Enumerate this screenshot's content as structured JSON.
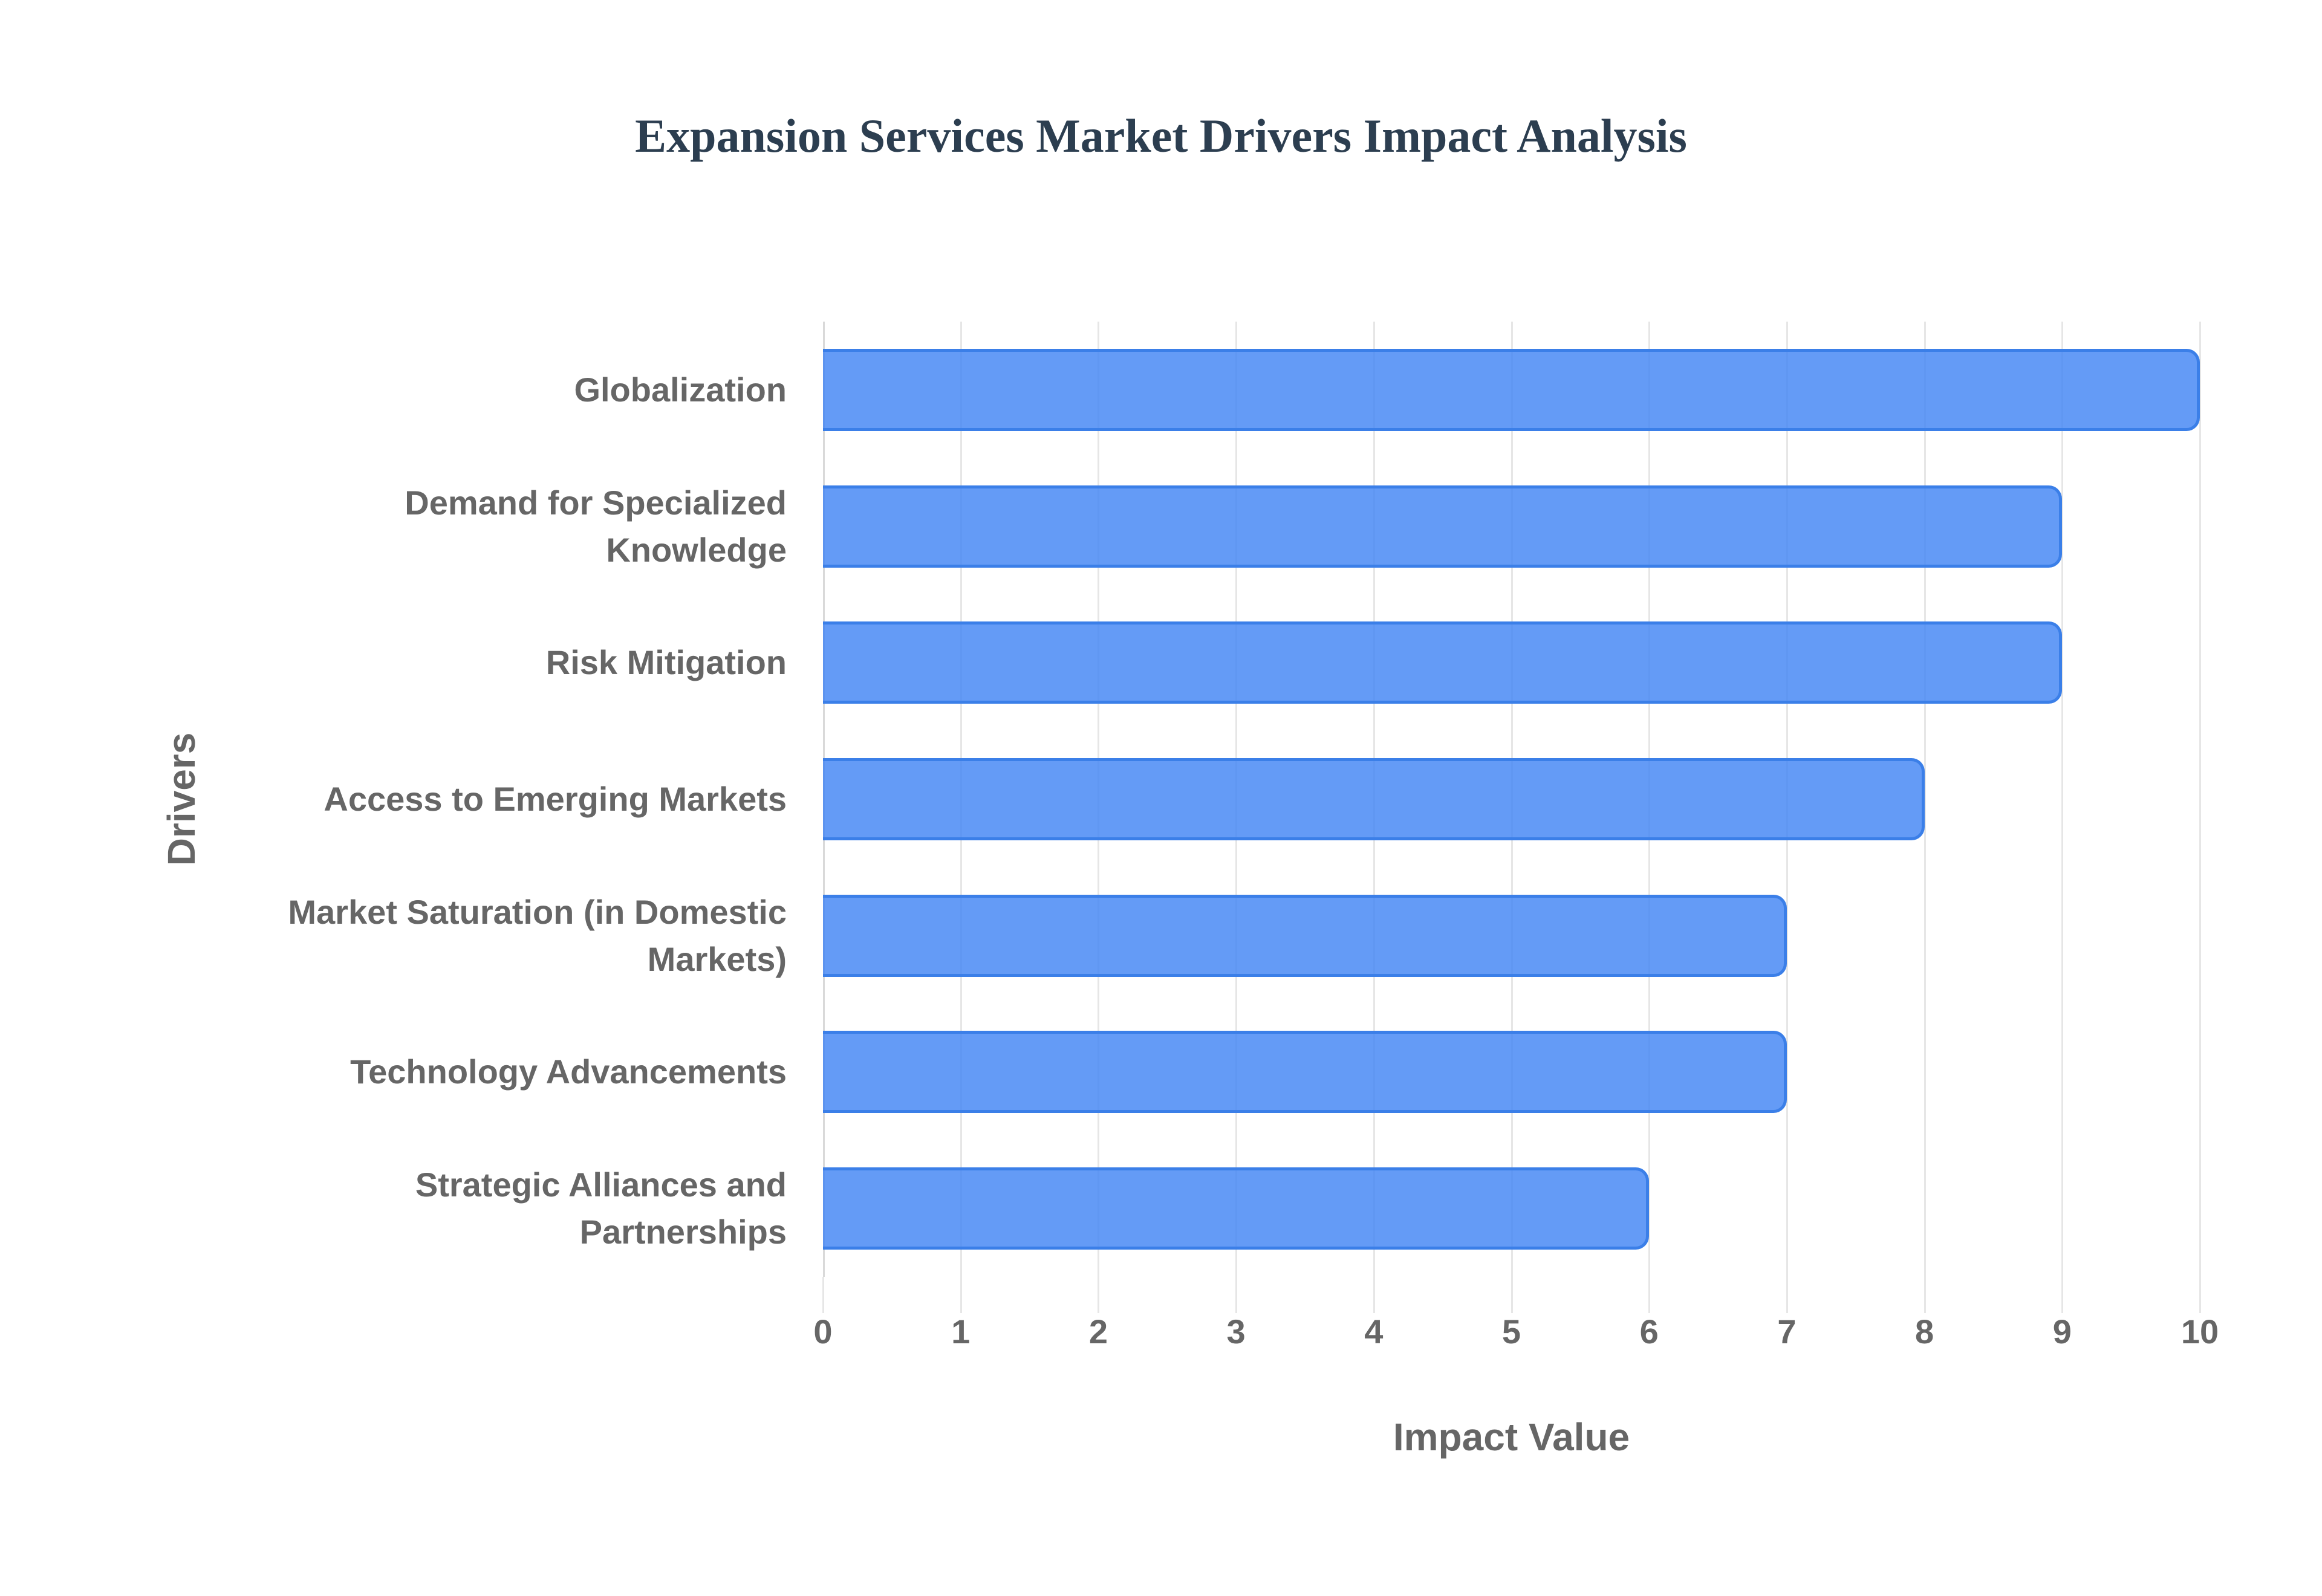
{
  "chart_data": {
    "type": "bar",
    "orientation": "horizontal",
    "title": "Expansion Services Market Drivers Impact Analysis",
    "xlabel": "Impact Value",
    "ylabel": "Drivers",
    "xlim": [
      0,
      10
    ],
    "x_ticks": [
      "0",
      "1",
      "2",
      "3",
      "4",
      "5",
      "6",
      "7",
      "8",
      "9",
      "10"
    ],
    "grid": true,
    "legend": null,
    "categories": [
      "Globalization",
      "Demand for Specialized Knowledge",
      "Risk Mitigation",
      "Access to Emerging Markets",
      "Market Saturation (in Domestic Markets)",
      "Technology Advancements",
      "Strategic Alliances and Partnerships"
    ],
    "values": [
      10,
      9,
      9,
      8,
      7,
      7,
      6
    ],
    "colors": {
      "bar_fill": "#6199f5",
      "bar_border": "#3b7fe8",
      "title": "#2c3e50",
      "axis_text": "#666666",
      "grid": "#e6e6e6"
    }
  },
  "labels": {
    "title": "Expansion Services Market Drivers Impact Analysis",
    "xlabel": "Impact Value",
    "ylabel": "Drivers",
    "categories_display": [
      [
        "Globalization"
      ],
      [
        "Demand for Specialized",
        "Knowledge"
      ],
      [
        "Risk Mitigation"
      ],
      [
        "Access to Emerging Markets"
      ],
      [
        "Market Saturation (in Domestic",
        "Markets)"
      ],
      [
        "Technology Advancements"
      ],
      [
        "Strategic Alliances and",
        "Partnerships"
      ]
    ]
  }
}
